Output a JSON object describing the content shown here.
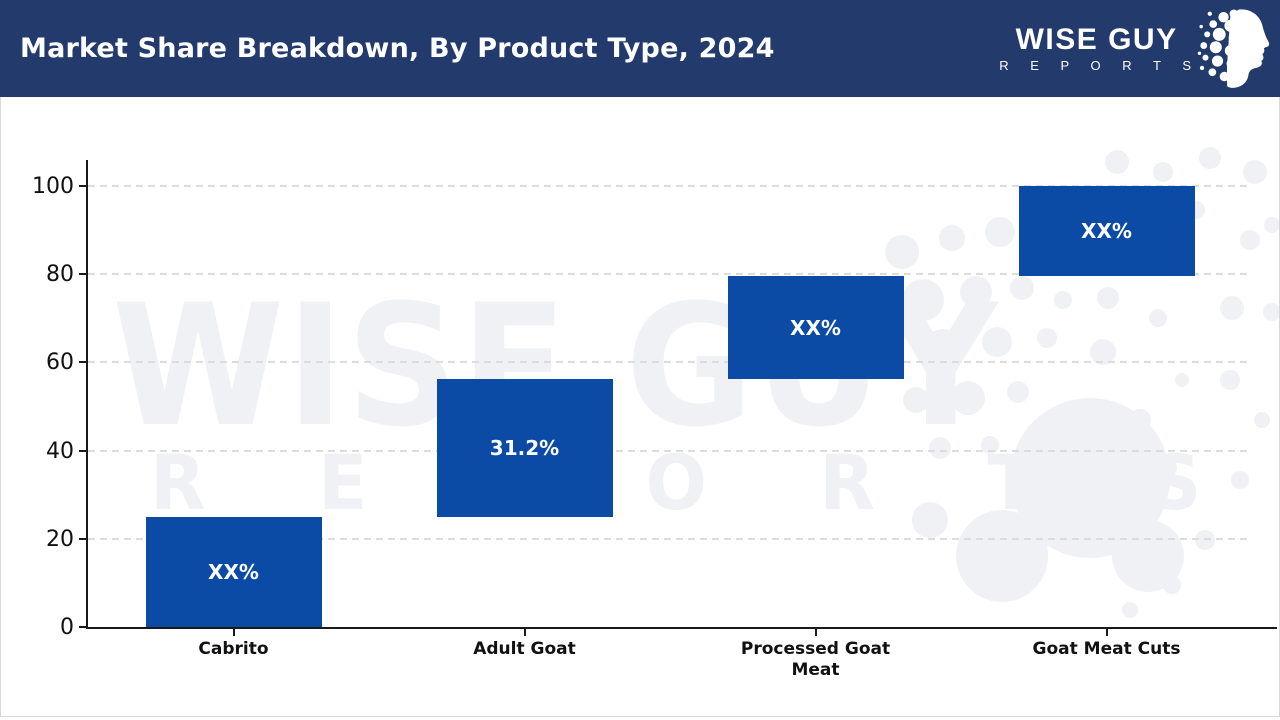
{
  "header": {
    "title": "Market Share Breakdown, By Product Type, 2024",
    "logo": {
      "line1": "WISE GUY",
      "line2": "R E P O R T S"
    }
  },
  "watermark": {
    "line1": "WISE GUY",
    "line2": "R E P O R T S"
  },
  "chart_data": {
    "type": "bar",
    "subtype": "floating-segment-waterfall",
    "title": "Market Share Breakdown, By Product Type, 2024",
    "categories": [
      "Cabrito",
      "Adult Goat",
      "Processed Goat\nMeat",
      "Goat Meat Cuts"
    ],
    "segments": [
      {
        "category": "Cabrito",
        "start": 0,
        "end": 25,
        "label": "XX%"
      },
      {
        "category": "Adult Goat",
        "start": 25,
        "end": 56.2,
        "label": "31.2%"
      },
      {
        "category": "Processed Goat Meat",
        "start": 56.2,
        "end": 79.6,
        "label": "XX%"
      },
      {
        "category": "Goat Meat Cuts",
        "start": 79.6,
        "end": 100,
        "label": "XX%"
      }
    ],
    "ylim": [
      0,
      100
    ],
    "yticks": [
      0,
      20,
      40,
      60,
      80,
      100
    ],
    "xlabel": "",
    "ylabel": "",
    "grid": {
      "horizontal": true,
      "style": "dashed",
      "color": "#dcdcdc"
    },
    "legend": null,
    "bar_color": "#0b4aa5",
    "bar_label_color": "#ffffff"
  },
  "colors": {
    "header_bg": "#223a6c",
    "header_text": "#ffffff",
    "bar": "#0b4aa5",
    "axis": "#1a1a1a",
    "tick_text": "#111111",
    "watermark": "#f0f1f4",
    "frame_border": "#d9d9d9",
    "background": "#ffffff"
  }
}
